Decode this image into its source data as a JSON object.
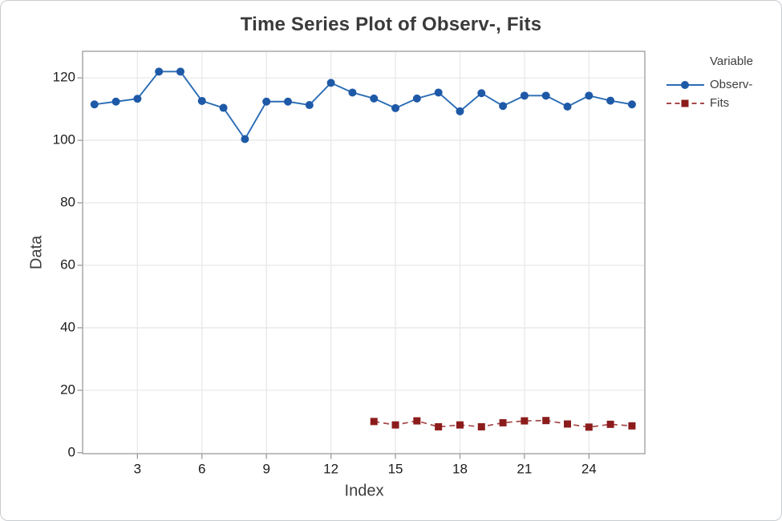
{
  "window": {
    "background": "#ffffff",
    "border_color": "#c9ccd0"
  },
  "chart_data": {
    "type": "line",
    "title": "Time Series Plot of Observ-, Fits",
    "xlabel": "Index",
    "ylabel": "Data",
    "xlim": [
      0.45,
      26.6
    ],
    "ylim": [
      -0.3,
      128.5
    ],
    "xticks": [
      3,
      6,
      9,
      12,
      15,
      18,
      21,
      24
    ],
    "yticks": [
      0,
      20,
      40,
      60,
      80,
      100,
      120
    ],
    "grid": true,
    "legend": {
      "title": "Variable",
      "position": "right"
    },
    "colors": {
      "grid": "#e8e8e8",
      "frame": "#9a9a9a",
      "tick": "#9a9a9a",
      "tick_label": "#1c1c1c",
      "text": "#3d3d3d"
    },
    "series": [
      {
        "name": "Observ-",
        "marker": "circle",
        "line_style": "solid",
        "line_color": "#2a6cb5",
        "marker_color": "#1e59a7",
        "x": [
          1,
          2,
          3,
          4,
          5,
          6,
          7,
          8,
          9,
          10,
          11,
          12,
          13,
          14,
          15,
          16,
          17,
          18,
          19,
          20,
          21,
          22,
          23,
          24,
          25,
          26
        ],
        "values": [
          111.5,
          112.4,
          113.3,
          122,
          122,
          112.6,
          110.4,
          100.4,
          112.4,
          112.4,
          111.3,
          118.4,
          115.3,
          113.4,
          110.3,
          113.4,
          115.3,
          109.3,
          115.1,
          111,
          114.3,
          114.3,
          110.8,
          114.3,
          112.7,
          111.5
        ]
      },
      {
        "name": "Fits",
        "marker": "square",
        "line_style": "dashed",
        "line_color": "#a54949",
        "marker_color": "#8c1c1c",
        "x": [
          14,
          15,
          16,
          17,
          18,
          19,
          20,
          21,
          22,
          23,
          24,
          25,
          26
        ],
        "values": [
          10,
          8.9,
          10.2,
          8.3,
          8.9,
          8.3,
          9.6,
          10.2,
          10.3,
          9.2,
          8.2,
          9.1,
          8.6
        ]
      }
    ]
  }
}
